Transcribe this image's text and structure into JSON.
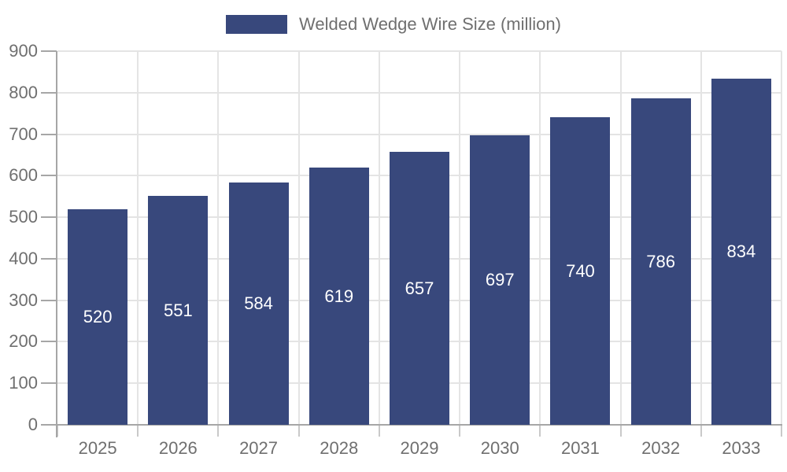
{
  "legend": {
    "label": "Welded Wedge Wire Size (million)"
  },
  "chart_data": {
    "type": "bar",
    "title": "",
    "categories": [
      "2025",
      "2026",
      "2027",
      "2028",
      "2029",
      "2030",
      "2031",
      "2032",
      "2033"
    ],
    "series": [
      {
        "name": "Welded Wedge Wire Size (million)",
        "values": [
          520,
          551,
          584,
          619,
          657,
          697,
          740,
          786,
          834
        ],
        "color": "#38487c"
      }
    ],
    "xlabel": "",
    "ylabel": "",
    "ylim": [
      0,
      900
    ],
    "yticks": [
      0,
      100,
      200,
      300,
      400,
      500,
      600,
      700,
      800,
      900
    ],
    "grid": "both",
    "legend_position": "top-center",
    "value_labels": "inside-center",
    "value_label_color": "#ffffff",
    "axis_color": "#a6a6a6",
    "grid_color": "#e4e4e4",
    "tick_label_color": "#6f6f6f"
  }
}
